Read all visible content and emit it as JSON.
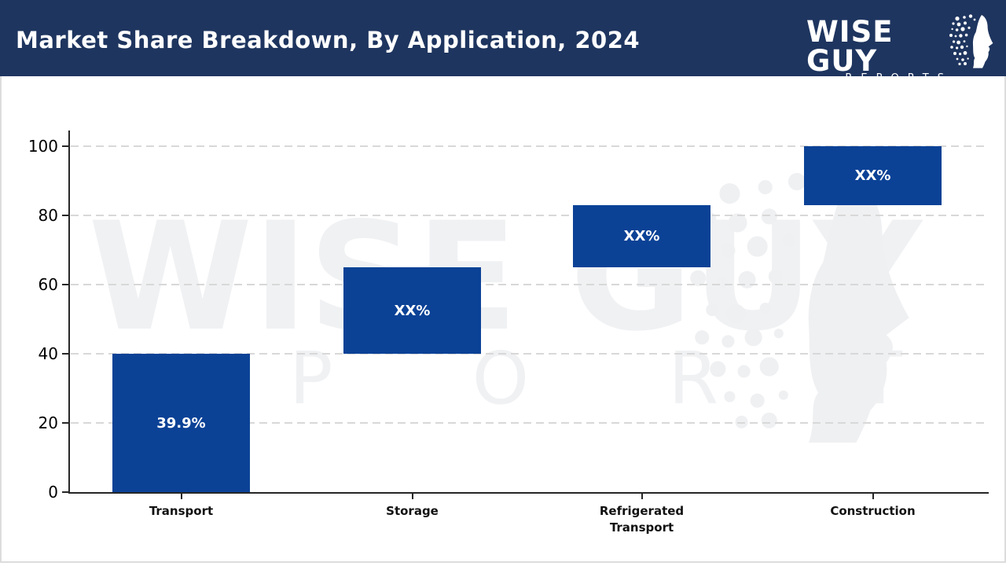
{
  "header": {
    "title": "Market Share Breakdown, By Application, 2024",
    "logo": {
      "name": "WISE GUY",
      "sub": "REPORTS"
    }
  },
  "watermark": {
    "line1": "WISE GUY",
    "line2": "P O R T S"
  },
  "chart_data": {
    "type": "bar",
    "subtype": "floating-waterfall",
    "title": "Market Share Breakdown, By Application, 2024",
    "xlabel": "",
    "ylabel": "",
    "categories": [
      "Transport",
      "Storage",
      "Refrigerated\nTransport",
      "Construction"
    ],
    "series": [
      {
        "name": "Market share (%)",
        "segments": [
          {
            "category": "Transport",
            "start": 0,
            "end": 40,
            "label": "39.9%"
          },
          {
            "category": "Storage",
            "start": 40,
            "end": 65,
            "label": "XX%"
          },
          {
            "category": "Refrigerated Transport",
            "start": 65,
            "end": 83,
            "label": "XX%"
          },
          {
            "category": "Construction",
            "start": 83,
            "end": 100,
            "label": "XX%"
          }
        ]
      }
    ],
    "ylim": [
      0,
      100
    ],
    "yticks": [
      0,
      20,
      40,
      60,
      80,
      100
    ],
    "grid": "horizontal-dashed",
    "legend": "none",
    "colors": {
      "bar": "#0b4296",
      "bar_label": "#ffffff",
      "grid": "#d8d8d8",
      "axis": "#262626",
      "header_bg": "#1e355f",
      "watermark": "#f0f1f3"
    }
  }
}
